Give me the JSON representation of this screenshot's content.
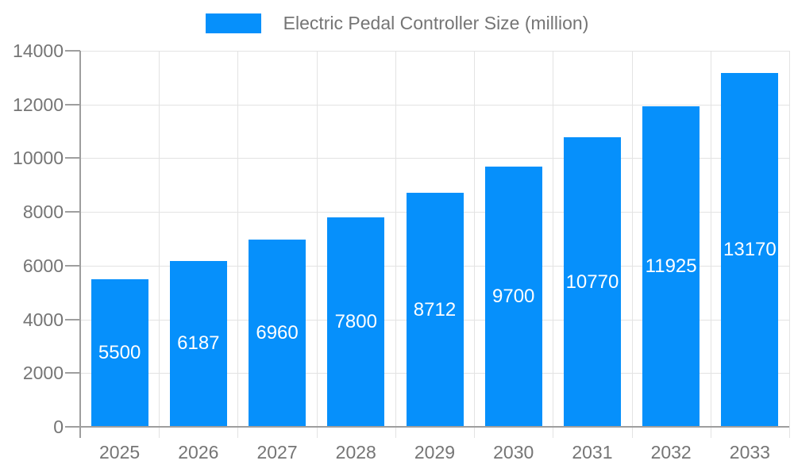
{
  "legend": {
    "label": "Electric Pedal Controller Size (million)"
  },
  "chart_data": {
    "type": "bar",
    "title": "Electric Pedal Controller Size (million)",
    "categories": [
      "2025",
      "2026",
      "2027",
      "2028",
      "2029",
      "2030",
      "2031",
      "2032",
      "2033"
    ],
    "series": [
      {
        "name": "Electric Pedal Controller Size (million)",
        "values": [
          5500,
          6187,
          6960,
          7800,
          8712,
          9700,
          10770,
          11925,
          13170
        ]
      }
    ],
    "bar_labels": [
      "5500",
      "6187",
      "6960",
      "7800",
      "8712",
      "9700",
      "10770",
      "11925",
      "13170"
    ],
    "xlabel": "",
    "ylabel": "",
    "ylim": [
      0,
      14000
    ],
    "ytick_step": 2000,
    "yticks": [
      "0",
      "2000",
      "4000",
      "6000",
      "8000",
      "10000",
      "12000",
      "14000"
    ],
    "grid": true,
    "legend_position": "top",
    "bar_label_position": "inside-center",
    "colors": {
      "bar": "#0690fb",
      "grid": "#e3e3e3",
      "axis": "#9e9e9e",
      "tick_text": "#757575",
      "bar_label": "#ffffff",
      "background": "#ffffff"
    }
  }
}
